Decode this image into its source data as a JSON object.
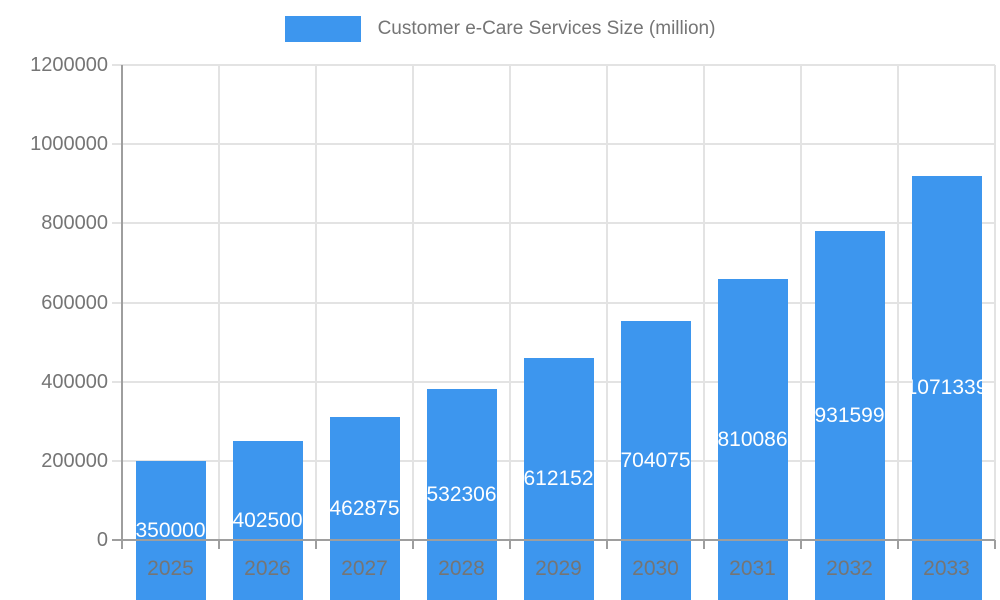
{
  "legend": {
    "label": "Customer e-Care Services Size (million)"
  },
  "chart_data": {
    "type": "bar",
    "title": "Customer e-Care Services Size (million)",
    "categories": [
      "2025",
      "2026",
      "2027",
      "2028",
      "2029",
      "2030",
      "2031",
      "2032",
      "2033"
    ],
    "values": [
      350000,
      402500,
      462875,
      532306,
      612152,
      704075,
      810086,
      931599,
      1071339
    ],
    "bar_labels": [
      "350000",
      "402500",
      "462875",
      "532306",
      "612152",
      "704075",
      "810086",
      "931599",
      "1071339"
    ],
    "xlabel": "",
    "ylabel": "",
    "ylim": [
      0,
      1200000
    ],
    "yticks": [
      0,
      200000,
      400000,
      600000,
      800000,
      1000000,
      1200000
    ],
    "ytick_labels": [
      "0",
      "200000",
      "400000",
      "600000",
      "800000",
      "1000000",
      "1200000"
    ],
    "grid": true,
    "legend_position": "top-center",
    "colors": {
      "bar": "#3D96EE",
      "bar_label": "#FFFFFF",
      "axis_text": "#757575",
      "grid_line": "#E3E3E3",
      "axis_line": "#9E9E9E",
      "background": "#FFFFFF"
    }
  }
}
